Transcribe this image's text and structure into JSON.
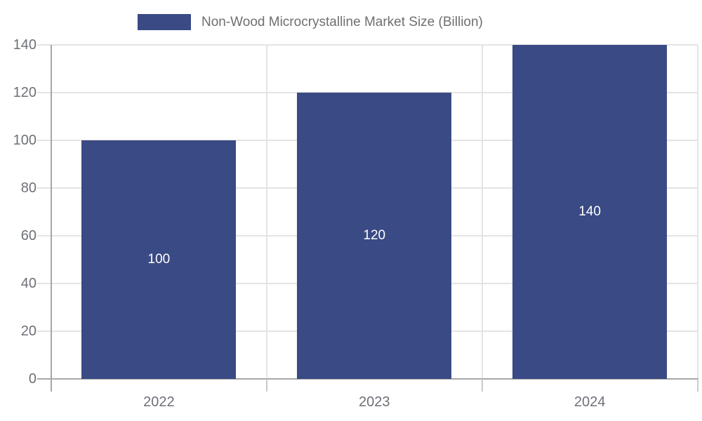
{
  "chart_data": {
    "type": "bar",
    "legend": "Non-Wood Microcrystalline Market Size (Billion)",
    "categories": [
      "2022",
      "2023",
      "2024"
    ],
    "values": [
      100,
      120,
      140
    ],
    "title": "",
    "xlabel": "",
    "ylabel": "",
    "ylim": [
      0,
      140
    ],
    "yticks": [
      0,
      20,
      40,
      60,
      80,
      100,
      120,
      140
    ],
    "grid": true,
    "legend_position": "top-center",
    "value_labels": "inside-center"
  },
  "colors": {
    "bar": "#3a4a84",
    "grid": "#e4e4e4",
    "axis": "#a7a7a7",
    "x_tick": "#c9c9c9",
    "tick_label": "#6e7079",
    "legend_text": "#6f6f6f",
    "value_label": "#ffffff",
    "background": "#ffffff"
  }
}
